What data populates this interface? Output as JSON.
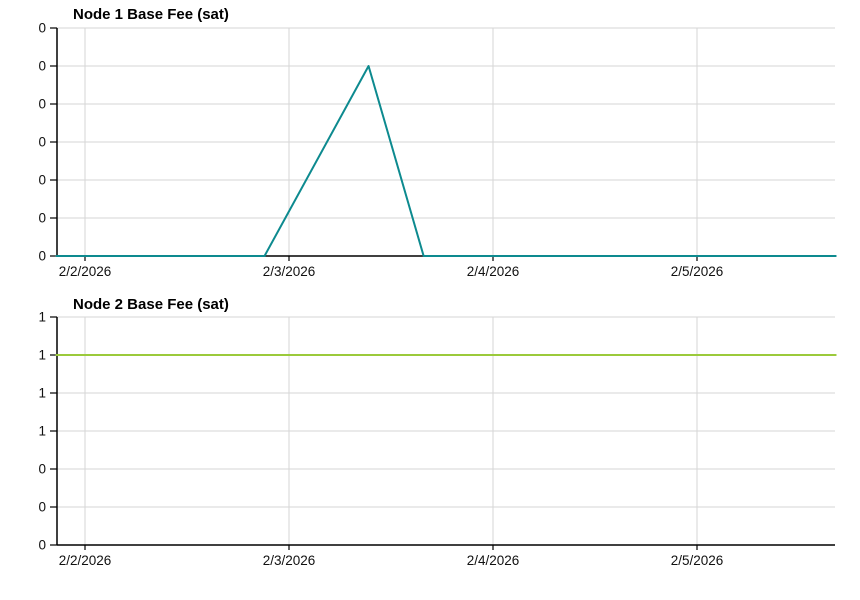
{
  "page": {
    "background": "#ffffff"
  },
  "chart_data": [
    {
      "type": "line",
      "title": "Node 1 Base Fee (sat)",
      "line_color": "#0d8a8f",
      "x_tick_labels": [
        "2/2/2026",
        "2/3/2026",
        "2/4/2026",
        "2/5/2026"
      ],
      "y_tick_labels_top_to_bottom": [
        "0",
        "0",
        "0",
        "0",
        "0",
        "0",
        "0"
      ],
      "x_unit": "days after the 2/2/2026 tick",
      "y_unit": "gridline index above baseline (0 = bottom axis, 6 = top gridline)",
      "points": [
        {
          "x": -0.14,
          "y": 0
        },
        {
          "x": 0.88,
          "y": 0
        },
        {
          "x": 1.39,
          "y": 5
        },
        {
          "x": 1.66,
          "y": 0
        },
        {
          "x": 3.68,
          "y": 0
        }
      ],
      "summary": "Base fee flat at 0 for the whole range except one spike that rises late on 2/2/2026, peaks mid-morning 2/3/2026 at the 5th gridline, and returns to 0 by mid-afternoon 2/3/2026."
    },
    {
      "type": "line",
      "title": "Node 2 Base Fee (sat)",
      "line_color": "#9bca3b",
      "x_tick_labels": [
        "2/2/2026",
        "2/3/2026",
        "2/4/2026",
        "2/5/2026"
      ],
      "y_tick_labels_top_to_bottom": [
        "1",
        "1",
        "1",
        "1",
        "0",
        "0",
        "0"
      ],
      "x_unit": "days after the 2/2/2026 tick",
      "y_unit": "gridline index above baseline (0 = bottom axis, 6 = top gridline)",
      "points": [
        {
          "x": -0.14,
          "y": 5
        },
        {
          "x": 3.68,
          "y": 5
        }
      ],
      "estimated_constant_value_sat": 1,
      "summary": "Base fee constant at 1 sat across the entire period."
    }
  ],
  "style": {
    "gridline_color": "#d6d6d6",
    "axis_color": "#000000",
    "tick_color": "#000000",
    "label_color": "#111111"
  }
}
